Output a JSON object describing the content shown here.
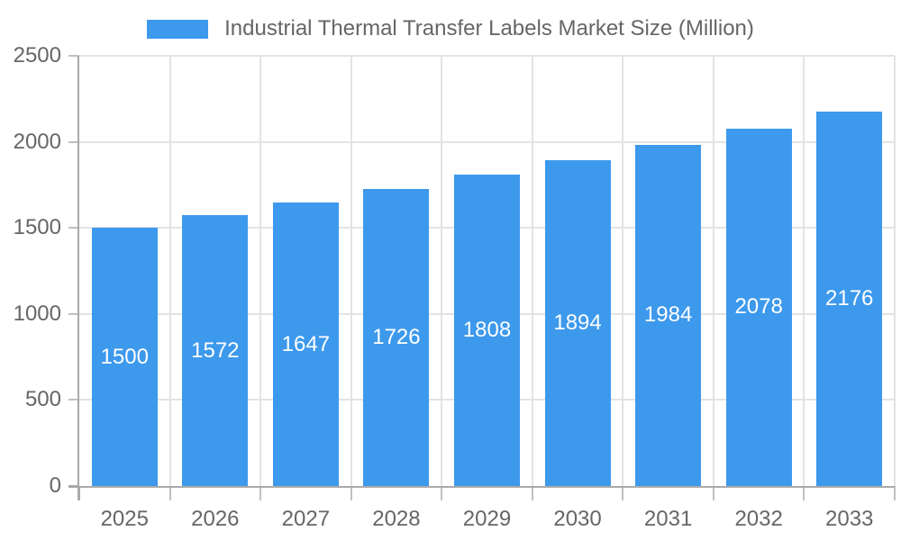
{
  "legend": {
    "swatch_color": "#3D99EC"
  },
  "chart_data": {
    "type": "bar",
    "title": "Industrial Thermal Transfer Labels Market Size (Million)",
    "categories": [
      "2025",
      "2026",
      "2027",
      "2028",
      "2029",
      "2030",
      "2031",
      "2032",
      "2033"
    ],
    "values": [
      1500,
      1572,
      1647,
      1726,
      1808,
      1894,
      1984,
      2078,
      2176
    ],
    "xlabel": "",
    "ylabel": "",
    "ylim": [
      0,
      2500
    ],
    "yticks": [
      0,
      500,
      1000,
      1500,
      2000,
      2500
    ],
    "grid": true,
    "legend_position": "top",
    "bar_color": "#3D99EC",
    "value_label_color": "#ffffff",
    "axis_text_color": "#666666",
    "grid_color": "#e3e3e3",
    "axis_line_color": "#aaaaaa",
    "tick_color": "#c0c0c0"
  }
}
